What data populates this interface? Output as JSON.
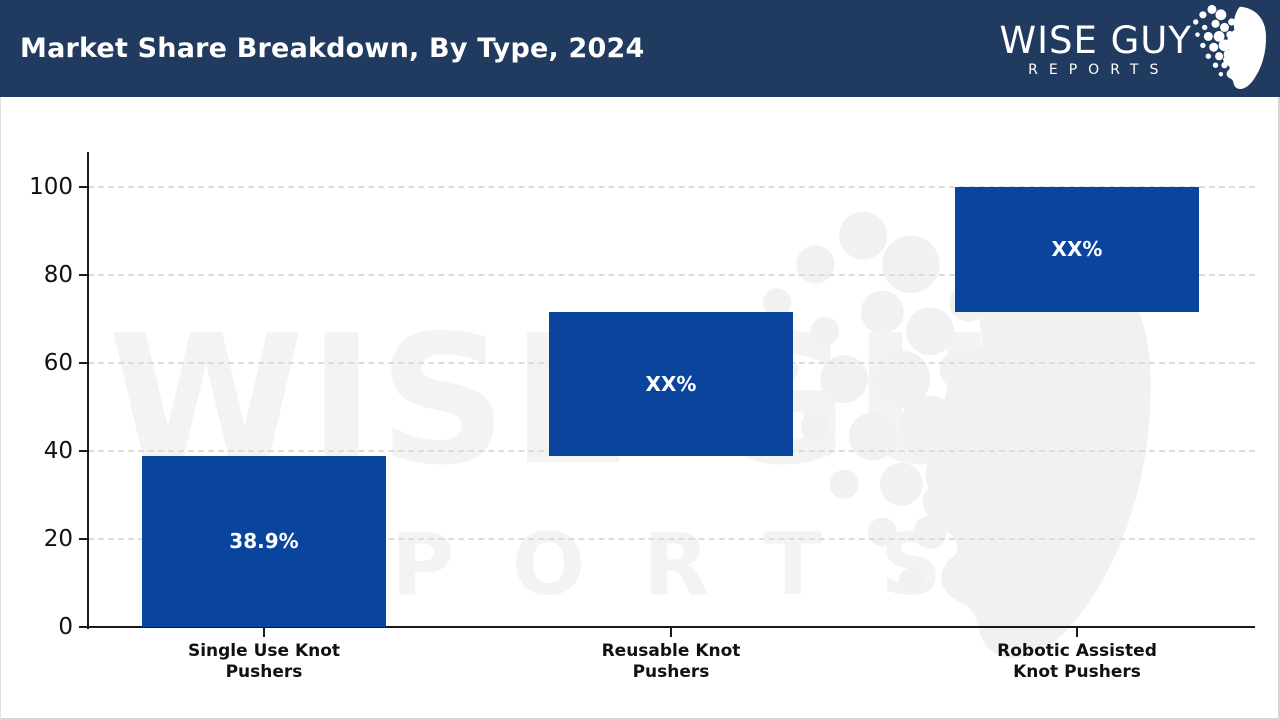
{
  "header": {
    "title": "Market Share Breakdown, By Type, 2024",
    "bg_color": "#213a5f",
    "logo": {
      "wordmark": "WISE GUY",
      "subtext": "REPORTS"
    }
  },
  "watermark": {
    "wordmark": "WISE GUY",
    "subtext": "REPORTS"
  },
  "chart_data": {
    "type": "bar",
    "subtype": "floating-segment-bars-waterfall-style",
    "title": "Market Share Breakdown, By Type, 2024",
    "categories": [
      {
        "line1": "Single Use Knot",
        "line2": "Pushers"
      },
      {
        "line1": "Reusable Knot",
        "line2": "Pushers"
      },
      {
        "line1": "Robotic Assisted",
        "line2": "Knot Pushers"
      }
    ],
    "bars": [
      {
        "category": "Single Use Knot Pushers",
        "from": 0,
        "to": 38.9,
        "label": "38.9%"
      },
      {
        "category": "Reusable Knot Pushers",
        "from": 38.9,
        "to": 71.6,
        "label": "XX%"
      },
      {
        "category": "Robotic Assisted Knot Pushers",
        "from": 71.6,
        "to": 100,
        "label": "XX%"
      }
    ],
    "ylim": [
      0,
      100
    ],
    "yticks": [
      0,
      20,
      40,
      60,
      80,
      100
    ],
    "xlabel": "",
    "ylabel": "",
    "grid": "horizontal-dashed",
    "legend": "none",
    "bar_color": "#0a449c",
    "bar_label_color": "#ffffff",
    "axis_color": "#1a1a1a",
    "grid_color": "#dcdcdc"
  }
}
